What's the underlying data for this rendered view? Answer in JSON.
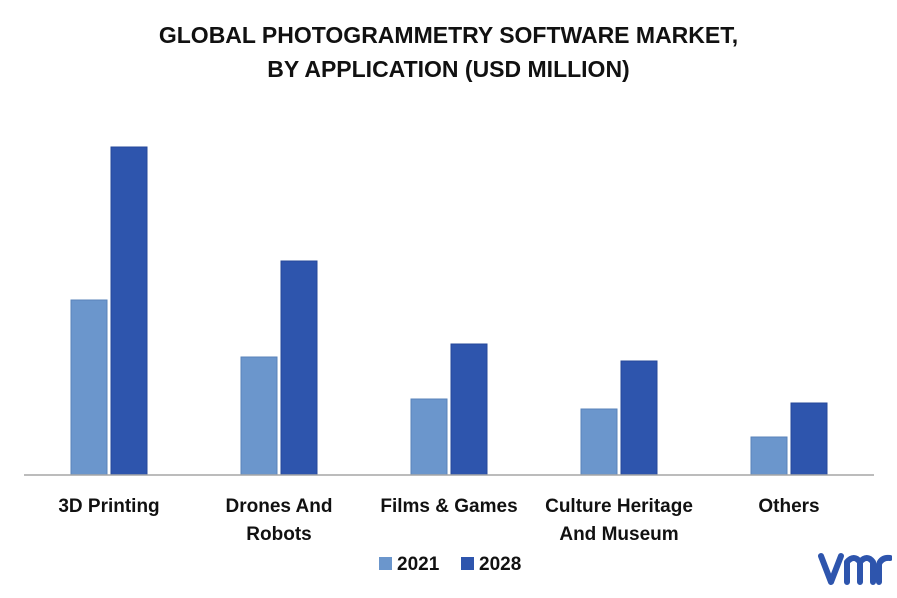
{
  "title_lines": [
    "GLOBAL PHOTOGRAMMETRY  SOFTWARE MARKET,",
    "BY APPLICATION (USD MILLION)"
  ],
  "colors": {
    "series_2021": "#6b96cc",
    "series_2028": "#2e55ad",
    "axis": "#a6a6a6",
    "logo": "#2e55ad"
  },
  "logo_icon": "vmr-logo-icon",
  "chart_data": {
    "type": "bar",
    "title": "GLOBAL PHOTOGRAMMETRY  SOFTWARE MARKET, BY APPLICATION (USD MILLION)",
    "categories": [
      [
        "3D Printing"
      ],
      [
        "Drones And",
        "Robots"
      ],
      [
        "Films & Games"
      ],
      [
        "Culture Heritage",
        "And Museum"
      ],
      [
        "Others"
      ]
    ],
    "series": [
      {
        "name": "2021",
        "values": [
          175,
          118,
          76,
          66,
          38
        ]
      },
      {
        "name": "2028",
        "values": [
          328,
          214,
          131,
          114,
          72
        ]
      }
    ],
    "ylim": [
      0,
      345
    ],
    "grid": false,
    "legend_position": "bottom"
  }
}
